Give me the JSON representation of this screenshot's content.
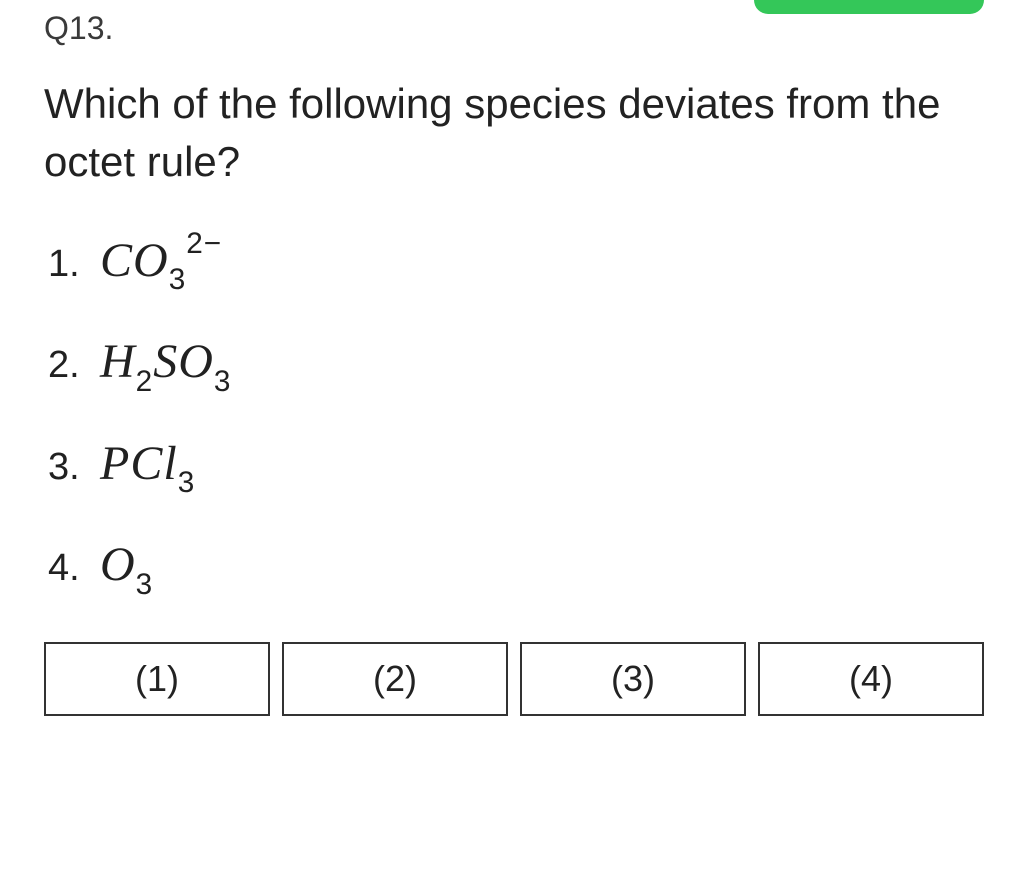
{
  "qnum_partial": "Q13.",
  "question": "Which of the following species deviates from the octet rule?",
  "options": [
    {
      "num": "1.",
      "formula_html": "<span class='formula'><span>C</span><span>O</span><span class='sub'>3</span><span class='sup'>2−</span></span>"
    },
    {
      "num": "2.",
      "formula_html": "<span class='formula'><span>H</span><span class='sub'>2</span><span>S</span><span>O</span><span class='sub'>3</span></span>"
    },
    {
      "num": "3.",
      "formula_html": "<span class='formula'><span>P</span><span>C</span><span>l</span><span class='sub'>3</span></span>"
    },
    {
      "num": "4.",
      "formula_html": "<span class='formula'><span>O</span><span class='sub'>3</span></span>"
    }
  ],
  "answers": [
    "(1)",
    "(2)",
    "(3)",
    "(4)"
  ],
  "colors": {
    "text": "#212121",
    "green": "#34c759",
    "border": "#333333",
    "bg": "#ffffff"
  }
}
